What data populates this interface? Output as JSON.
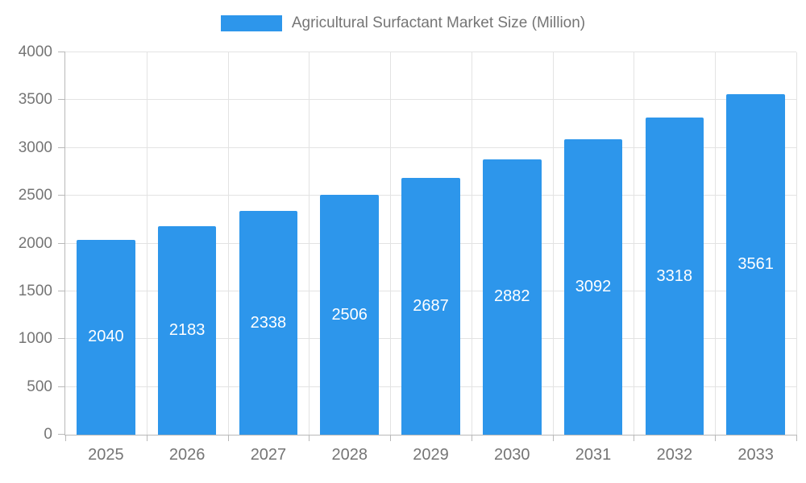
{
  "chart_data": {
    "type": "bar",
    "title": "Agricultural Surfactant Market Size (Million)",
    "categories": [
      "2025",
      "2026",
      "2027",
      "2028",
      "2029",
      "2030",
      "2031",
      "2032",
      "2033"
    ],
    "values": [
      2040,
      2183,
      2338,
      2506,
      2687,
      2882,
      3092,
      3318,
      3561
    ],
    "xlabel": "",
    "ylabel": "",
    "ylim": [
      0,
      4000
    ],
    "yticks": [
      0,
      500,
      1000,
      1500,
      2000,
      2500,
      3000,
      3500,
      4000
    ],
    "grid": true,
    "legend_position": "top",
    "bar_color": "#2d96eb",
    "value_label_color": "#ffffff",
    "text_color": "#757575",
    "grid_color": "#e3e3e3",
    "axis_color": "#b9b9b9"
  }
}
